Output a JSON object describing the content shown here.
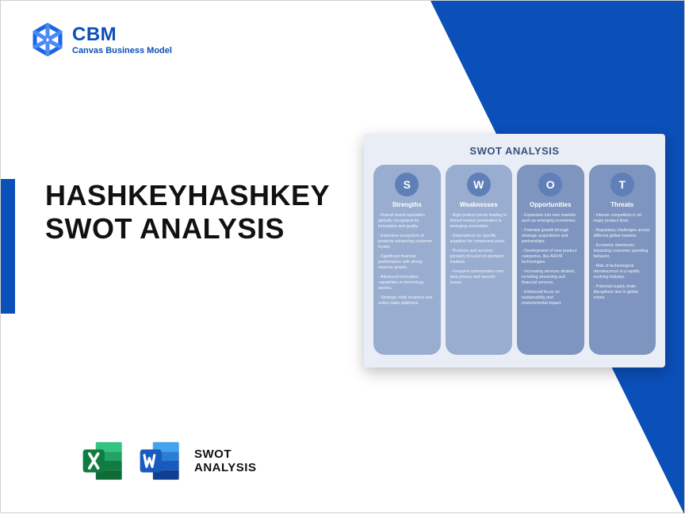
{
  "colors": {
    "brand_blue": "#0b4fb8",
    "card_bg": "#e9eef6",
    "col_dark": "#7e95bf",
    "col_light": "#98add0",
    "circle": "#5f7fb8",
    "title_dark": "#38507d",
    "excel_green_dark": "#107c41",
    "excel_green_mid": "#21a366",
    "word_blue_dark": "#1e4ea1",
    "word_blue_mid": "#2b7cd3"
  },
  "logo": {
    "title": "CBM",
    "subtitle": "Canvas Business Model"
  },
  "main_title": "HASHKEYHASHKEY SWOT ANALYSIS",
  "bottom_label_line1": "SWOT",
  "bottom_label_line2": "ANALYSIS",
  "swot_card": {
    "title": "SWOT ANALYSIS",
    "columns": [
      {
        "letter": "S",
        "heading": "Strengths",
        "tone": "light",
        "items": [
          "Robust brand reputation globally recognized for innovation and quality.",
          "Extensive ecosystem of products enhancing customer loyalty.",
          "Significant financial performance with strong revenue growth.",
          "Advanced innovation capabilities in technology sectors.",
          "Strategic retail locations and online sales platforms."
        ]
      },
      {
        "letter": "W",
        "heading": "Weaknesses",
        "tone": "light",
        "items": [
          "High product prices leading to limited market penetration in emerging economies.",
          "Dependence on specific suppliers for component parts.",
          "Products and services primarily focused on premium markets.",
          "Frequent controversies over data privacy and security issues."
        ]
      },
      {
        "letter": "O",
        "heading": "Opportunities",
        "tone": "dark",
        "items": [
          "Expansion into new markets such as emerging economies.",
          "Potential growth through strategic acquisitions and partnerships.",
          "Development of new product categories, like AR/VR technologies.",
          "Increasing services division, including streaming and financial services.",
          "Enhanced focus on sustainability and environmental impact."
        ]
      },
      {
        "letter": "T",
        "heading": "Threats",
        "tone": "dark",
        "items": [
          "Intense competition in all major product lines.",
          "Regulatory challenges across different global markets.",
          "Economic downturns impacting consumer spending behavior.",
          "Risk of technological obsolescence in a rapidly evolving industry.",
          "Potential supply chain disruptions due to global crises."
        ]
      }
    ]
  }
}
